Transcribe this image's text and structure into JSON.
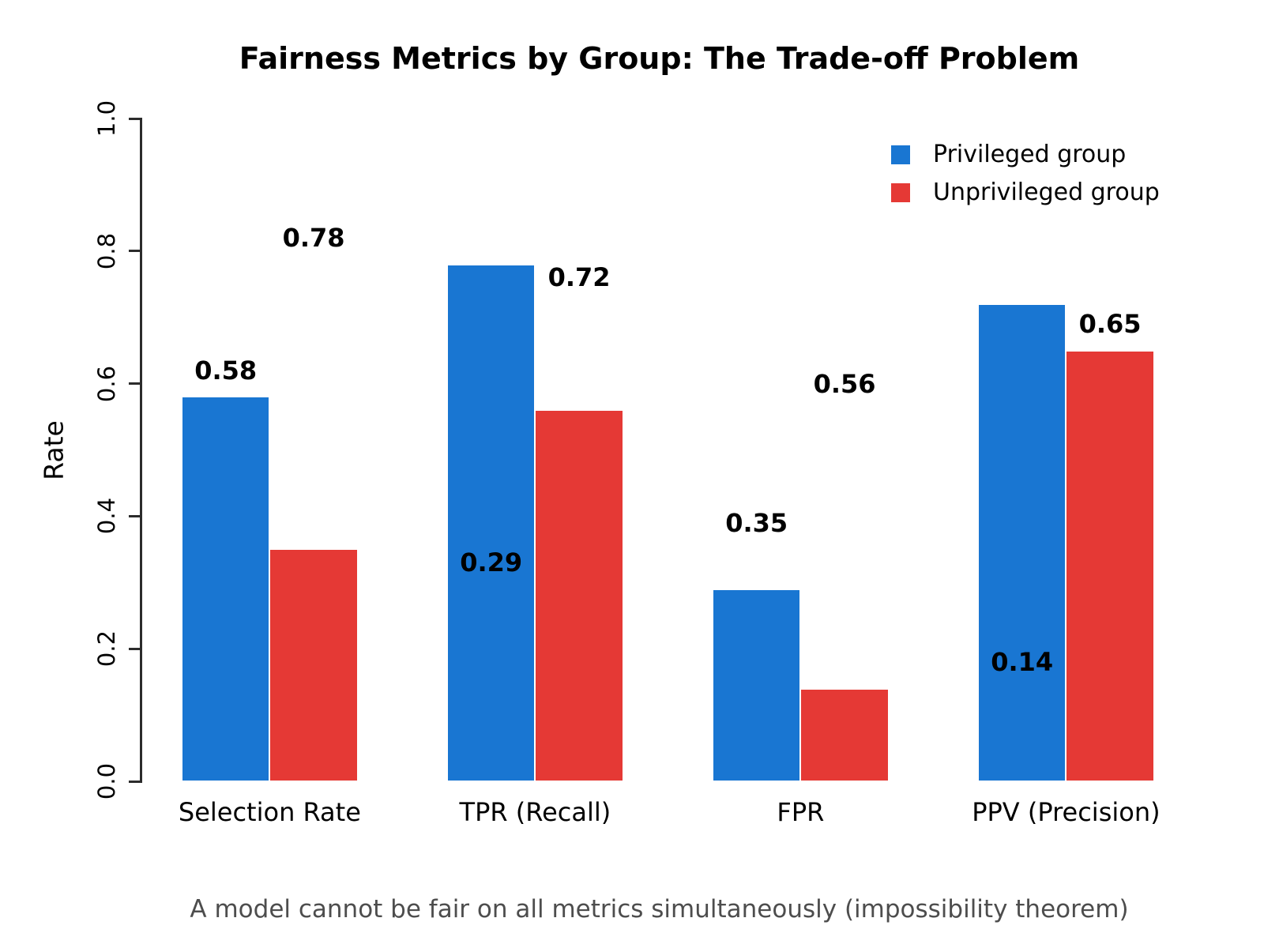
{
  "title": "Fairness Metrics by Group: The Trade-off Problem",
  "caption": "A model cannot be fair on all metrics simultaneously (impossibility theorem)",
  "y_axis": {
    "label": "Rate",
    "tick_labels": [
      "0.0",
      "0.2",
      "0.4",
      "0.6",
      "0.8",
      "1.0"
    ]
  },
  "legend": {
    "items": [
      {
        "label": "Privileged group",
        "color": "#1976d2"
      },
      {
        "label": "Unprivileged group",
        "color": "#e53935"
      }
    ]
  },
  "chart_data": {
    "type": "bar",
    "title": "Fairness Metrics by Group: The Trade-off Problem",
    "categories": [
      "Selection Rate",
      "TPR (Recall)",
      "FPR",
      "PPV (Precision)"
    ],
    "series": [
      {
        "name": "Privileged group",
        "color": "#1976d2",
        "values": [
          0.58,
          0.78,
          0.29,
          0.72
        ]
      },
      {
        "name": "Unprivileged group",
        "color": "#e53935",
        "values": [
          0.35,
          0.56,
          0.14,
          0.65
        ]
      }
    ],
    "xlabel": "",
    "ylabel": "Rate",
    "ylim": [
      0,
      1.0
    ],
    "yticks": [
      0.0,
      0.2,
      0.4,
      0.6,
      0.8,
      1.0
    ],
    "grid": false,
    "legend_position": "top-right",
    "bar_value_labels_in_slot_order": [
      "0.58",
      "0.78",
      "0.29",
      "0.72",
      "0.35",
      "0.56",
      "0.14",
      "0.65"
    ],
    "bar_value_label_height_offset": 0.04,
    "annotation": "A model cannot be fair on all metrics simultaneously (impossibility theorem)"
  }
}
